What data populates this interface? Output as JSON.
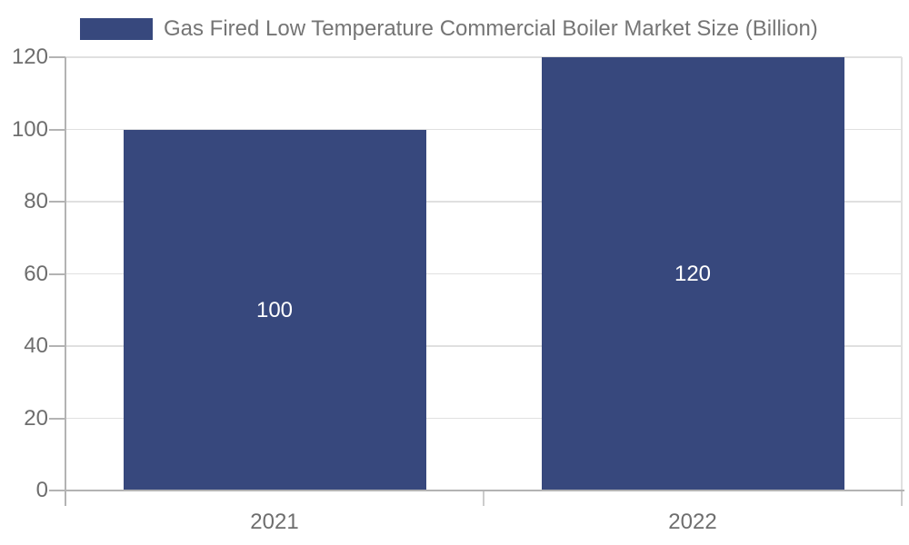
{
  "chart_data": {
    "type": "bar",
    "title": "",
    "categories": [
      "2021",
      "2022"
    ],
    "series": [
      {
        "name": "Gas Fired Low Temperature Commercial Boiler Market Size (Billion)",
        "values": [
          100,
          120
        ]
      }
    ],
    "value_labels": [
      "100",
      "120"
    ],
    "xlabel": "",
    "ylabel": "",
    "ylim": [
      0,
      120
    ],
    "yticks": [
      0,
      20,
      40,
      60,
      80,
      100,
      120
    ],
    "grid": true,
    "legend_position": "top-left",
    "colors": {
      "bar": "#37487d",
      "grid": "#e0e0e0",
      "axis": "#b3b3b3",
      "boundary_tick": "#cccccc",
      "tick_label": "#6e6e6e",
      "legend_text": "#757575",
      "value_label": "#ffffff",
      "background": "#ffffff"
    }
  }
}
